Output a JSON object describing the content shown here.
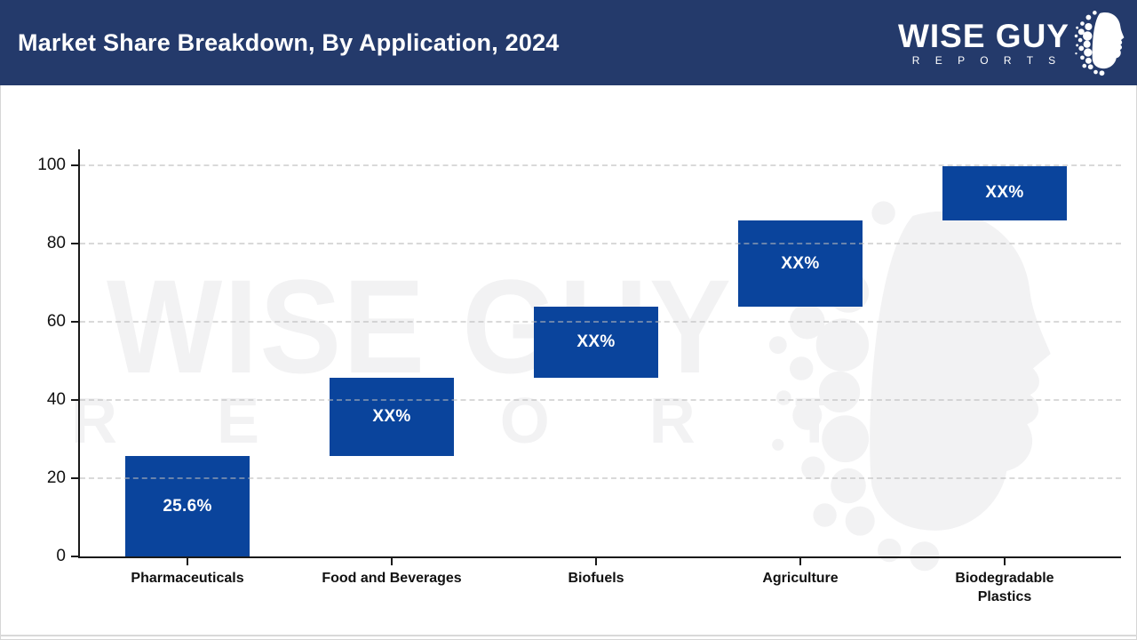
{
  "header": {
    "title": "Market Share Breakdown, By Application, 2024",
    "logo": {
      "line1": "WISE GUY",
      "line2": "R E P O R T S"
    }
  },
  "watermark": {
    "line1": "WISE GUY",
    "line2": "R E P O R T S"
  },
  "colors": {
    "header_bg": "#243A6B",
    "bar": "#0A449C",
    "axis": "#1A1A1A",
    "grid": "#D9D9D9",
    "watermark": "#F2F2F3",
    "bar_label": "#FFFFFF"
  },
  "chart_data": {
    "type": "bar",
    "subtype": "waterfall",
    "title": "Market Share Breakdown, By Application, 2024",
    "categories": [
      "Pharmaceuticals",
      "Food and Beverages",
      "Biofuels",
      "Agriculture",
      "Biodegradable Plastics"
    ],
    "bars": [
      {
        "category": "Pharmaceuticals",
        "start": 0,
        "end": 25.6,
        "label": "25.6%"
      },
      {
        "category": "Food and Beverages",
        "start": 25.6,
        "end": 45.6,
        "label": "XX%"
      },
      {
        "category": "Biofuels",
        "start": 45.6,
        "end": 63.8,
        "label": "XX%"
      },
      {
        "category": "Agriculture",
        "start": 63.8,
        "end": 85.9,
        "label": "XX%"
      },
      {
        "category": "Biodegradable Plastics",
        "start": 85.9,
        "end": 99.8,
        "label": "XX%"
      }
    ],
    "yticks": [
      0,
      20,
      40,
      60,
      80,
      100
    ],
    "ylim": [
      0,
      104
    ],
    "xlabel": "",
    "ylabel": "",
    "grid": "horizontal-dashed",
    "legend": "none"
  }
}
